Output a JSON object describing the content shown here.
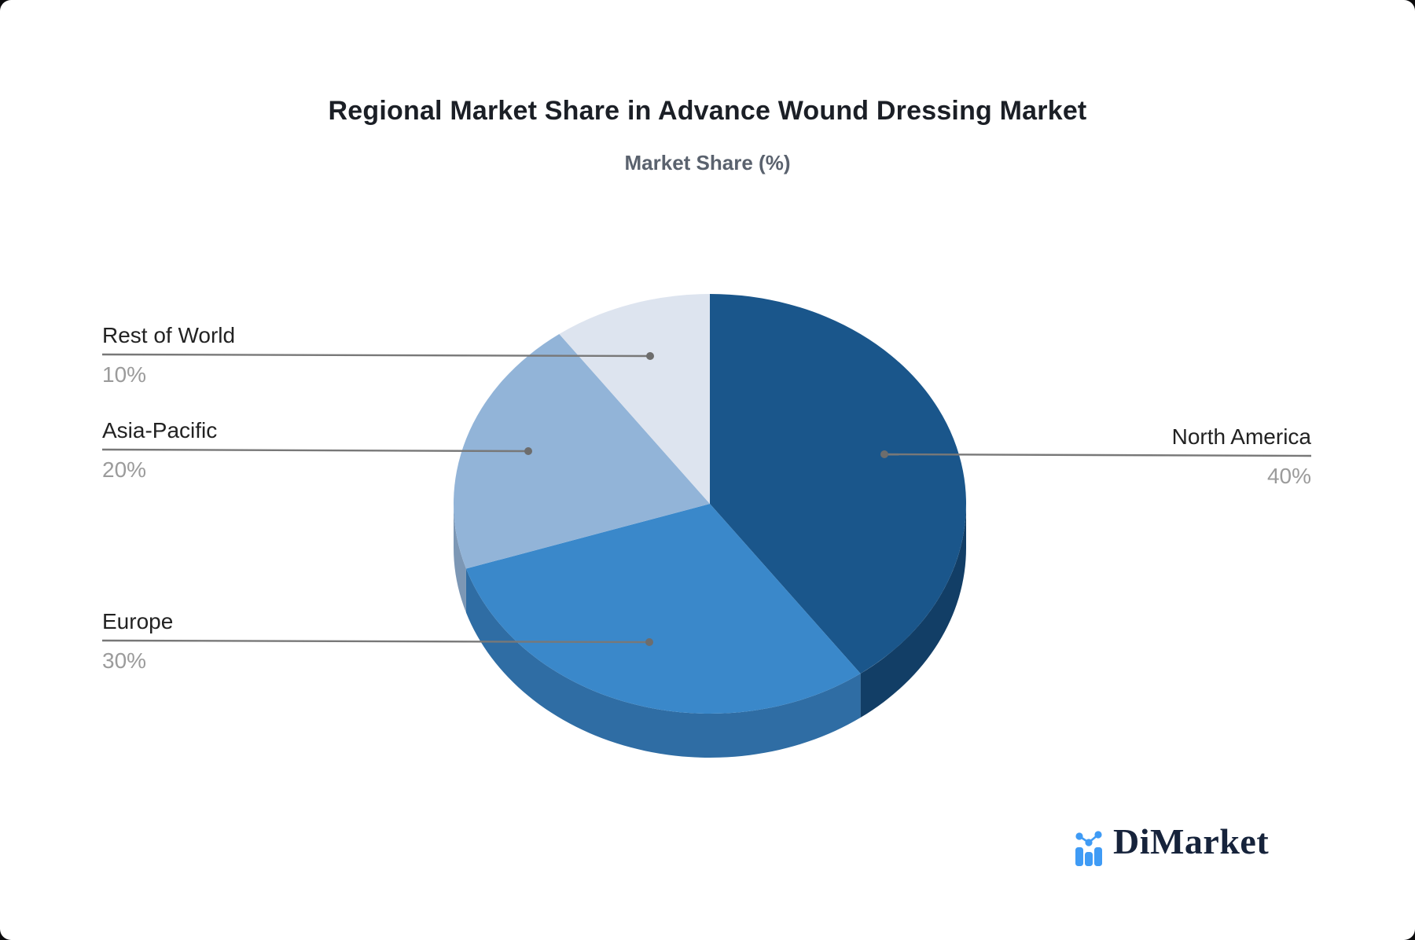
{
  "title": "Regional Market Share in Advance Wound Dressing Market",
  "subtitle": "Market Share (%)",
  "brand": {
    "name": "DiMarket",
    "icon": "bar-chart-with-trend-dots-icon",
    "accent_color": "#3F9BF5",
    "text_color": "#16233B"
  },
  "chart_data": {
    "type": "pie",
    "title": "Regional Market Share in Advance Wound Dressing Market",
    "subtitle": "Market Share (%)",
    "unit": "%",
    "effect": "3d",
    "start_angle_deg": 0,
    "direction": "clockwise",
    "legend_position": "callout-labels",
    "slices": [
      {
        "label": "North America",
        "value": 40,
        "pct_text": "40%",
        "color": "#1A568B",
        "side_color": "#123E66",
        "callout_side": "right"
      },
      {
        "label": "Europe",
        "value": 30,
        "pct_text": "30%",
        "color": "#3A88CA",
        "side_color": "#2F6DA4",
        "callout_side": "left"
      },
      {
        "label": "Asia-Pacific",
        "value": 20,
        "pct_text": "20%",
        "color": "#92B4D8",
        "side_color": "#7C97B5",
        "callout_side": "left"
      },
      {
        "label": "Rest of World",
        "value": 10,
        "pct_text": "10%",
        "color": "#DDE4EF",
        "side_color": "#B9C6D9",
        "callout_side": "left"
      }
    ],
    "leader_line_color": "#787878",
    "leader_dot_color": "#6d6d6d",
    "label_text_color": "#222222",
    "pct_text_color": "#9B9B9B"
  }
}
